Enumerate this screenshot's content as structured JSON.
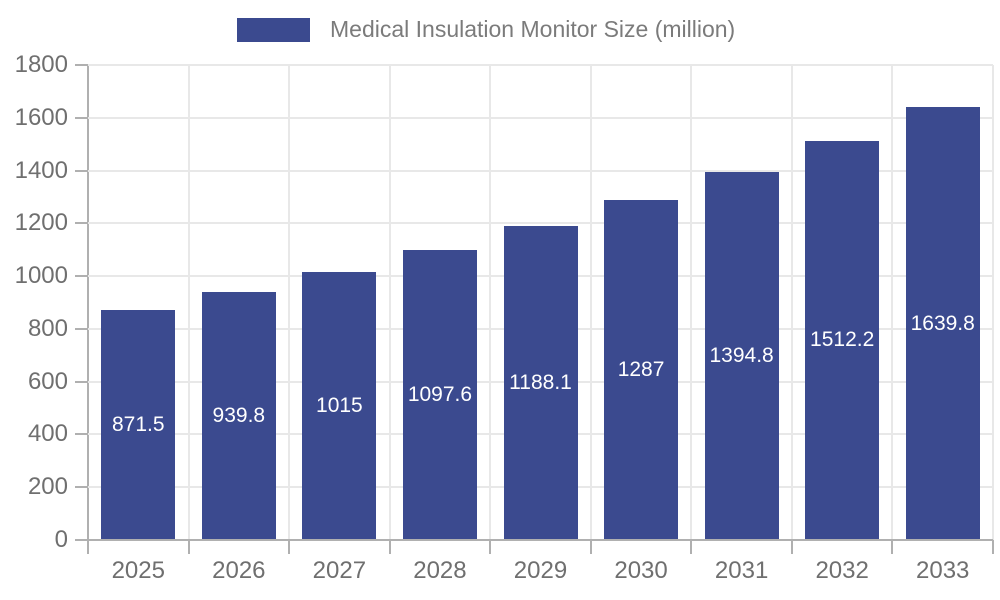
{
  "legend": {
    "label": "Medical Insulation Monitor Size (million)"
  },
  "colors": {
    "background": "#ffffff",
    "bar": "#3b4a8f",
    "grid": "#e8e8e8",
    "axis": "#b0b0b0",
    "axis_text": "#6f6f6f",
    "legend_text": "#7b7b7b",
    "value_label_text": "#ffffff"
  },
  "chart_data": {
    "type": "bar",
    "title": "Medical Insulation Monitor Size (million)",
    "categories": [
      "2025",
      "2026",
      "2027",
      "2028",
      "2029",
      "2030",
      "2031",
      "2032",
      "2033"
    ],
    "values": [
      871.5,
      939.8,
      1015,
      1097.6,
      1188.1,
      1287,
      1394.8,
      1512.2,
      1639.8
    ],
    "xlabel": "",
    "ylabel": "",
    "ylim": [
      0,
      1800
    ],
    "yticks": [
      0,
      200,
      400,
      600,
      800,
      1000,
      1200,
      1400,
      1600,
      1800
    ],
    "grid": true,
    "legend_position": "top",
    "value_labels": "inside-center"
  }
}
